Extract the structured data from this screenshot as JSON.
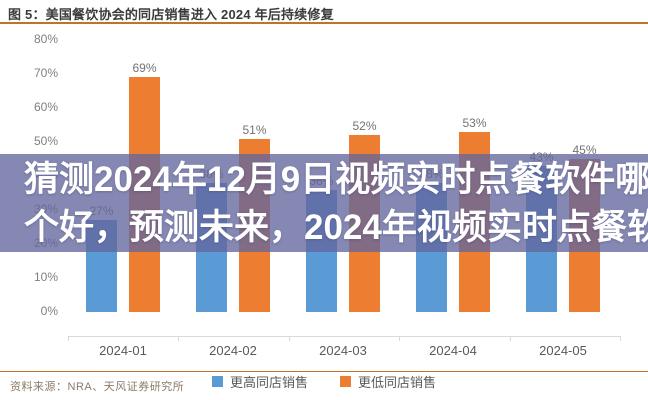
{
  "title": "图 5：美国餐饮协会的同店销售进入 2024 年后持续修复",
  "overlay": {
    "line1": "猜测2024年12月9日视频实时点餐软件哪",
    "line2": "个好，预测未来，2024年视频实时点餐软"
  },
  "footer": {
    "source": "资料来源：NRA、天风证券研究所"
  },
  "chart_data": {
    "type": "bar",
    "title": "图 5：美国餐饮协会的同店销售进入 2024 年后持续修复",
    "categories": [
      "2024-01",
      "2024-02",
      "2024-03",
      "2024-04",
      "2024-05"
    ],
    "series": [
      {
        "name": "更高同店销售",
        "color": "#5B9BD5",
        "values": [
          27,
          38,
          36,
          38,
          43
        ],
        "labels": [
          "27%",
          "38%",
          "36%",
          "38%",
          "43%"
        ]
      },
      {
        "name": "更低同店销售",
        "color": "#ED7D31",
        "values": [
          69,
          51,
          52,
          53,
          45
        ],
        "labels": [
          "69%",
          "51%",
          "52%",
          "53%",
          "45%"
        ]
      }
    ],
    "xlabel": "",
    "ylabel": "",
    "ylim": [
      0,
      80
    ],
    "y_tick_step": 10,
    "y_tick_suffix": "%",
    "grid": false,
    "data_labels": true,
    "legend_position": "bottom"
  },
  "colors": {
    "accent_rule": "#bd7328",
    "axis_line": "#d9d9d9",
    "tick_label": "#7f7f7f",
    "category_label": "#595959",
    "data_label": "#737373",
    "overlay_band": "rgba(99,103,158,0.78)",
    "overlay_text": "#ffffff"
  }
}
